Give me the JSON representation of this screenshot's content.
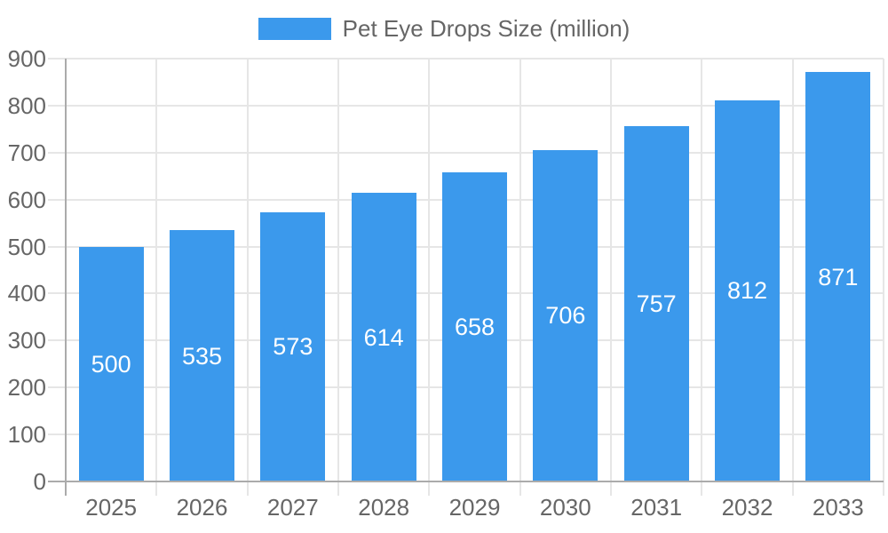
{
  "chart_data": {
    "type": "bar",
    "title": "Pet Eye Drops Size (million)",
    "categories": [
      "2025",
      "2026",
      "2027",
      "2028",
      "2029",
      "2030",
      "2031",
      "2032",
      "2033"
    ],
    "values": [
      500,
      535,
      573,
      614,
      658,
      706,
      757,
      812,
      871
    ],
    "xlabel": "",
    "ylabel": "",
    "ylim": [
      0,
      900
    ],
    "ytick_step": 100,
    "yticks": [
      0,
      100,
      200,
      300,
      400,
      500,
      600,
      700,
      800,
      900
    ],
    "grid": true,
    "legend_position": "top",
    "value_labels": "inside-center",
    "colors": {
      "bar": "#3B99EC",
      "grid": "#E6E6E6",
      "axis": "#ABABAB",
      "text": "#666666",
      "value_label": "#FFFFFF",
      "background": "#FFFFFF"
    }
  }
}
